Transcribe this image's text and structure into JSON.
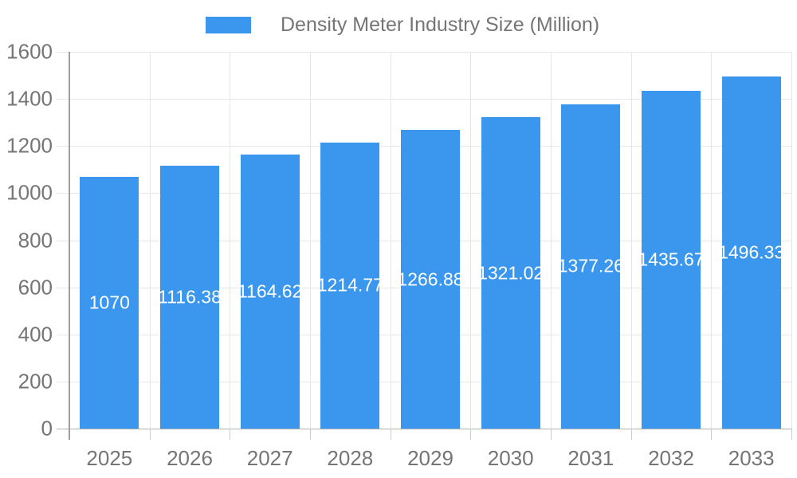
{
  "legend": {
    "label": "Density Meter Industry Size (Million)"
  },
  "chart_data": {
    "type": "bar",
    "title": "Density Meter Industry Size (Million)",
    "categories": [
      "2025",
      "2026",
      "2027",
      "2028",
      "2029",
      "2030",
      "2031",
      "2032",
      "2033"
    ],
    "values": [
      1070,
      1116.38,
      1164.62,
      1214.77,
      1266.88,
      1321.02,
      1377.26,
      1435.67,
      1496.33
    ],
    "value_labels": [
      "1070",
      "1116.38",
      "1164.62",
      "1214.77",
      "1266.88",
      "1321.02",
      "1377.26",
      "1435.67",
      "1496.33"
    ],
    "xlabel": "",
    "ylabel": "",
    "ylim": [
      0,
      1600
    ],
    "y_ticks": [
      0,
      200,
      400,
      600,
      800,
      1000,
      1200,
      1400,
      1600
    ],
    "grid": true,
    "legend_position": "top-center",
    "colors": {
      "bar": "#3b97ee",
      "value_label": "#ffffff",
      "axis_text": "#757575",
      "gridline": "#e6e6e6",
      "baseline": "#b3b3b3",
      "axis_line": "#9e9e9e",
      "tick": "#cccccc",
      "background": "#ffffff"
    }
  }
}
